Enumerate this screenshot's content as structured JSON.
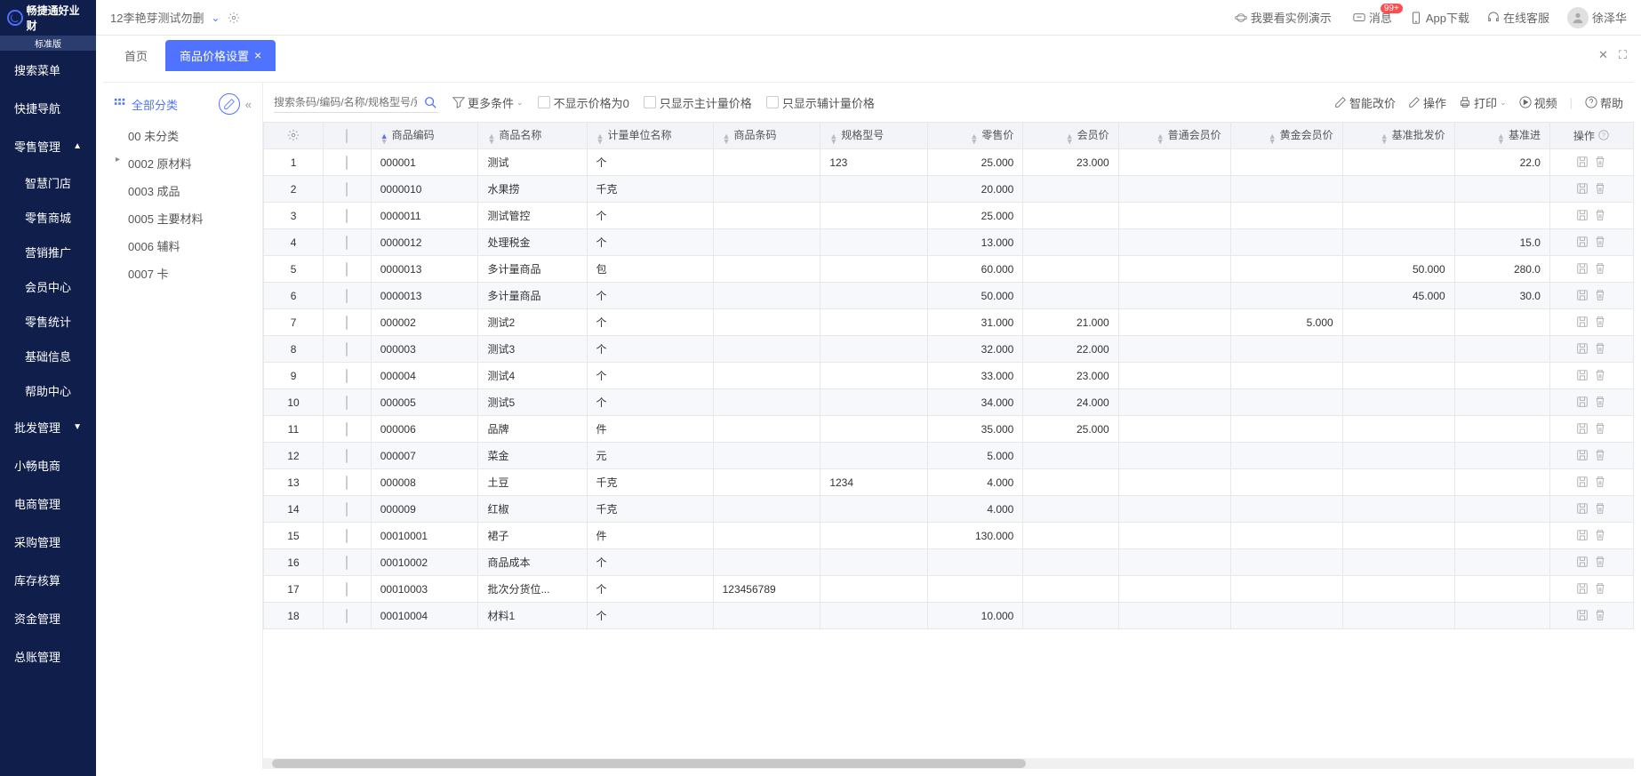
{
  "brand": {
    "name": "畅捷通好业财",
    "version": "标准版"
  },
  "topbar": {
    "org": "12李艳芽测试勿删",
    "demo": "我要看实例演示",
    "msg": "消息",
    "msg_badge": "99+",
    "app": "App下载",
    "help": "在线客服",
    "user": "徐泽华"
  },
  "tabs": {
    "home": "首页",
    "active": "商品价格设置"
  },
  "nav": {
    "search": "搜索菜单",
    "quick": "快捷导航",
    "retail": "零售管理",
    "retail_sub": [
      "智慧门店",
      "零售商城",
      "营销推广",
      "会员中心",
      "零售统计",
      "基础信息",
      "帮助中心"
    ],
    "wholesale": "批发管理",
    "others": [
      "小畅电商",
      "电商管理",
      "采购管理",
      "库存核算",
      "资金管理",
      "总账管理"
    ]
  },
  "tree": {
    "all": "全部分类",
    "items": [
      {
        "label": "00 未分类",
        "hc": false
      },
      {
        "label": "0002 原材料",
        "hc": true
      },
      {
        "label": "0003 成品",
        "hc": false
      },
      {
        "label": "0005 主要材料",
        "hc": false
      },
      {
        "label": "0006 辅料",
        "hc": false
      },
      {
        "label": "0007 卡",
        "hc": false
      }
    ]
  },
  "toolbar": {
    "search_ph": "搜索条码/编码/名称/规格型号/别名",
    "more": "更多条件",
    "chk1": "不显示价格为0",
    "chk2": "只显示主计量价格",
    "chk3": "只显示辅计量价格",
    "smart": "智能改价",
    "op": "操作",
    "print": "打印",
    "video": "视频",
    "help": "帮助"
  },
  "cols": [
    "商品编码",
    "商品名称",
    "计量单位名称",
    "商品条码",
    "规格型号",
    "零售价",
    "会员价",
    "普通会员价",
    "黄金会员价",
    "基准批发价",
    "基准进",
    "操作"
  ],
  "rows": [
    {
      "i": 1,
      "code": "000001",
      "name": "测试",
      "unit": "个",
      "bar": "",
      "spec": "123",
      "p1": "25.000",
      "p2": "23.000",
      "p3": "",
      "p4": "",
      "p5": "",
      "p6": "22.0"
    },
    {
      "i": 2,
      "code": "0000010",
      "name": "水果捞",
      "unit": "千克",
      "bar": "",
      "spec": "",
      "p1": "20.000",
      "p2": "",
      "p3": "",
      "p4": "",
      "p5": "",
      "p6": ""
    },
    {
      "i": 3,
      "code": "0000011",
      "name": "测试管控",
      "unit": "个",
      "bar": "",
      "spec": "",
      "p1": "25.000",
      "p2": "",
      "p3": "",
      "p4": "",
      "p5": "",
      "p6": ""
    },
    {
      "i": 4,
      "code": "0000012",
      "name": "处理税金",
      "unit": "个",
      "bar": "",
      "spec": "",
      "p1": "13.000",
      "p2": "",
      "p3": "",
      "p4": "",
      "p5": "",
      "p6": "15.0"
    },
    {
      "i": 5,
      "code": "0000013",
      "name": "多计量商品",
      "unit": "包",
      "bar": "",
      "spec": "",
      "p1": "60.000",
      "p2": "",
      "p3": "",
      "p4": "",
      "p5": "50.000",
      "p6": "280.0"
    },
    {
      "i": 6,
      "code": "0000013",
      "name": "多计量商品",
      "unit": "个",
      "bar": "",
      "spec": "",
      "p1": "50.000",
      "p2": "",
      "p3": "",
      "p4": "",
      "p5": "45.000",
      "p6": "30.0"
    },
    {
      "i": 7,
      "code": "000002",
      "name": "测试2",
      "unit": "个",
      "bar": "",
      "spec": "",
      "p1": "31.000",
      "p2": "21.000",
      "p3": "",
      "p4": "5.000",
      "p5": "",
      "p6": ""
    },
    {
      "i": 8,
      "code": "000003",
      "name": "测试3",
      "unit": "个",
      "bar": "",
      "spec": "",
      "p1": "32.000",
      "p2": "22.000",
      "p3": "",
      "p4": "",
      "p5": "",
      "p6": ""
    },
    {
      "i": 9,
      "code": "000004",
      "name": "测试4",
      "unit": "个",
      "bar": "",
      "spec": "",
      "p1": "33.000",
      "p2": "23.000",
      "p3": "",
      "p4": "",
      "p5": "",
      "p6": ""
    },
    {
      "i": 10,
      "code": "000005",
      "name": "测试5",
      "unit": "个",
      "bar": "",
      "spec": "",
      "p1": "34.000",
      "p2": "24.000",
      "p3": "",
      "p4": "",
      "p5": "",
      "p6": ""
    },
    {
      "i": 11,
      "code": "000006",
      "name": "品牌",
      "unit": "件",
      "bar": "",
      "spec": "",
      "p1": "35.000",
      "p2": "25.000",
      "p3": "",
      "p4": "",
      "p5": "",
      "p6": ""
    },
    {
      "i": 12,
      "code": "000007",
      "name": "菜金",
      "unit": "元",
      "bar": "",
      "spec": "",
      "p1": "5.000",
      "p2": "",
      "p3": "",
      "p4": "",
      "p5": "",
      "p6": ""
    },
    {
      "i": 13,
      "code": "000008",
      "name": "土豆",
      "unit": "千克",
      "bar": "",
      "spec": "1234",
      "p1": "4.000",
      "p2": "",
      "p3": "",
      "p4": "",
      "p5": "",
      "p6": ""
    },
    {
      "i": 14,
      "code": "000009",
      "name": "红椒",
      "unit": "千克",
      "bar": "",
      "spec": "",
      "p1": "4.000",
      "p2": "",
      "p3": "",
      "p4": "",
      "p5": "",
      "p6": ""
    },
    {
      "i": 15,
      "code": "00010001",
      "name": "裙子",
      "unit": "件",
      "bar": "",
      "spec": "",
      "p1": "130.000",
      "p2": "",
      "p3": "",
      "p4": "",
      "p5": "",
      "p6": ""
    },
    {
      "i": 16,
      "code": "00010002",
      "name": "商品成本",
      "unit": "个",
      "bar": "",
      "spec": "",
      "p1": "",
      "p2": "",
      "p3": "",
      "p4": "",
      "p5": "",
      "p6": ""
    },
    {
      "i": 17,
      "code": "00010003",
      "name": "批次分货位...",
      "unit": "个",
      "bar": "123456789",
      "spec": "",
      "p1": "",
      "p2": "",
      "p3": "",
      "p4": "",
      "p5": "",
      "p6": ""
    },
    {
      "i": 18,
      "code": "00010004",
      "name": "材料1",
      "unit": "个",
      "bar": "",
      "spec": "",
      "p1": "10.000",
      "p2": "",
      "p3": "",
      "p4": "",
      "p5": "",
      "p6": ""
    }
  ],
  "colors": {
    "primary": "#5073ff",
    "sidebar": "#0f1e4a",
    "header": "#f2f4f9",
    "stripe": "#f7f8fc"
  }
}
